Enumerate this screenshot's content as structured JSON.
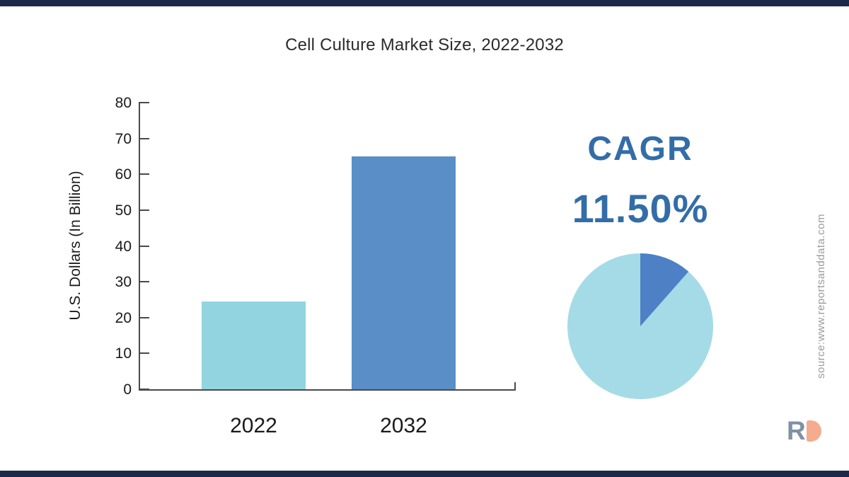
{
  "page": {
    "background": "#ffffff",
    "strip_color": "#1c2a4a"
  },
  "chart_data": {
    "type": "bar",
    "title": "Cell Culture Market Size, 2022-2032",
    "categories": [
      "2022",
      "2032"
    ],
    "values": [
      24.4,
      65
    ],
    "xlabel": "",
    "ylabel": "U.S. Dollars (In Billion)",
    "ylim": [
      0,
      80
    ],
    "y_ticks": [
      0,
      10,
      20,
      30,
      40,
      50,
      60,
      70,
      80
    ],
    "bar_colors": [
      "#93d4e1",
      "#5a8ec7"
    ],
    "grid": false,
    "legend": "none"
  },
  "cagr": {
    "label": "CAGR",
    "value": "11.50%",
    "percent": 11.5,
    "text_color": "#336da8"
  },
  "pie": {
    "type": "pie",
    "slice_percent": 11.5,
    "slice_color": "#4e80c5",
    "remainder_color": "#a5dbe6"
  },
  "source": {
    "text": "source:www.reportsanddata.com",
    "color": "#9b9b9b"
  },
  "logo": {
    "letter": "R",
    "letter_color": "#8090a5",
    "accent_color": "#f4ab8e"
  }
}
